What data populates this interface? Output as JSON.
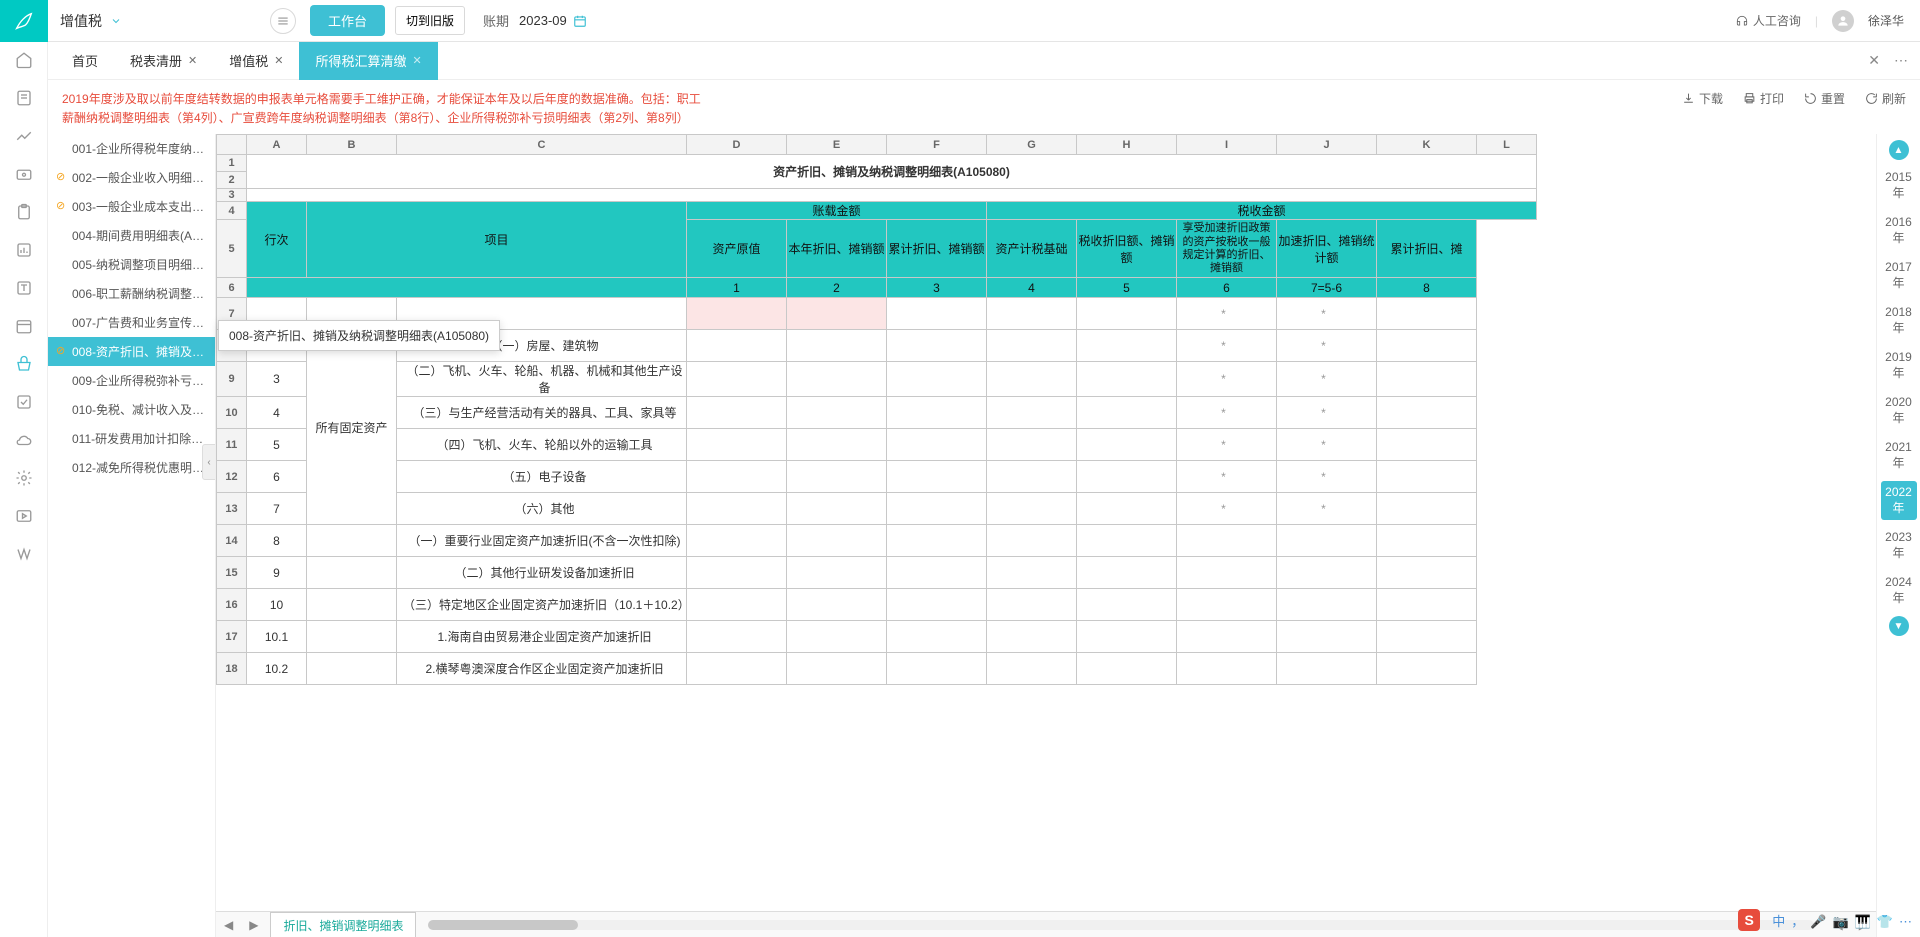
{
  "header": {
    "company": "增值税",
    "workspace_btn": "工作台",
    "old_version_btn": "切到旧版",
    "period_label": "账期",
    "period_value": "2023-09",
    "consult_label": "人工咨询",
    "username": "徐泽华"
  },
  "doc_tabs": [
    {
      "label": "首页",
      "closable": false,
      "active": false
    },
    {
      "label": "税表清册",
      "closable": true,
      "active": false
    },
    {
      "label": "增值税",
      "closable": true,
      "active": false
    },
    {
      "label": "所得税汇算清缴",
      "closable": true,
      "active": true
    }
  ],
  "notice": "2019年度涉及取以前年度结转数据的申报表单元格需要手工维护正确，才能保证本年及以后年度的数据准确。包括：职工薪酬纳税调整明细表（第4列）、广宣费跨年度纳税调整明细表（第8行）、企业所得税弥补亏损明细表（第2列、第8列）",
  "actions": {
    "download": "下载",
    "print": "打印",
    "reset": "重置",
    "refresh": "刷新"
  },
  "form_list": [
    {
      "label": "001-企业所得税年度纳税申...",
      "warn": false,
      "selected": false
    },
    {
      "label": "002-一般企业收入明细表(A1...",
      "warn": true,
      "selected": false
    },
    {
      "label": "003-一般企业成本支出明细...",
      "warn": true,
      "selected": false
    },
    {
      "label": "004-期间费用明细表(A1040...",
      "warn": false,
      "selected": false
    },
    {
      "label": "005-纳税调整项目明细表(A1...",
      "warn": false,
      "selected": false
    },
    {
      "label": "006-职工薪酬纳税调整明细...",
      "warn": false,
      "selected": false
    },
    {
      "label": "007-广告费和业务宣传费跨...",
      "warn": false,
      "selected": false
    },
    {
      "label": "008-资产折旧、摊销及纳税...",
      "warn": true,
      "selected": true
    },
    {
      "label": "009-企业所得税弥补亏损明...",
      "warn": false,
      "selected": false
    },
    {
      "label": "010-免税、减计收入及加计...",
      "warn": false,
      "selected": false
    },
    {
      "label": "011-研发费用加计扣除优惠...",
      "warn": false,
      "selected": false
    },
    {
      "label": "012-减免所得税优惠明细表(...",
      "warn": false,
      "selected": false
    }
  ],
  "tooltip": "008-资产折旧、摊销及纳税调整明细表(A105080)",
  "sheet": {
    "columns": [
      "A",
      "B",
      "C",
      "D",
      "E",
      "F",
      "G",
      "H",
      "I",
      "J",
      "K",
      "L"
    ],
    "title": "资产折旧、摊销及纳税调整明细表(A105080)",
    "hdr_row_label": "行次",
    "hdr_project": "项目",
    "hdr_book_group": "账载金额",
    "hdr_tax_group": "税收金额",
    "sub_headers": {
      "d": "资产原值",
      "e": "本年折旧、摊销额",
      "f": "累计折旧、摊销额",
      "g": "资产计税基础",
      "h": "税收折旧额、摊销额",
      "i": "享受加速折旧政策的资产按税收一般规定计算的折旧、摊销额",
      "j": "加速折旧、摊销统计额",
      "k": "累计折旧、摊"
    },
    "col_nums": {
      "d": "1",
      "e": "2",
      "f": "3",
      "g": "4",
      "h": "5",
      "i": "6",
      "j": "7=5-6",
      "k": "8"
    },
    "rows": [
      {
        "r": "7",
        "a": "",
        "b": "",
        "c": "",
        "pinkDE": true
      },
      {
        "r": "8",
        "a": "2",
        "b": "",
        "c": "（一）房屋、建筑物"
      },
      {
        "r": "9",
        "a": "3",
        "b": "",
        "c": "（二）飞机、火车、轮船、机器、机械和其他生产设备"
      },
      {
        "r": "10",
        "a": "4",
        "b": "",
        "c": "（三）与生产经营活动有关的器具、工具、家具等"
      },
      {
        "r": "11",
        "a": "5",
        "b": "所有固定资产",
        "c": "（四）飞机、火车、轮船以外的运输工具"
      },
      {
        "r": "12",
        "a": "6",
        "b": "",
        "c": "（五）电子设备"
      },
      {
        "r": "13",
        "a": "7",
        "b": "",
        "c": "（六）其他"
      },
      {
        "r": "14",
        "a": "8",
        "b": "",
        "c": "（一）重要行业固定资产加速折旧(不含一次性扣除)"
      },
      {
        "r": "15",
        "a": "9",
        "b": "",
        "c": "（二）其他行业研发设备加速折旧"
      },
      {
        "r": "16",
        "a": "10",
        "b": "",
        "c": "（三）特定地区企业固定资产加速折旧（10.1＋10.2）"
      },
      {
        "r": "17",
        "a": "10.1",
        "b": "",
        "c": "1.海南自由贸易港企业固定资产加速折旧"
      },
      {
        "r": "18",
        "a": "10.2",
        "b": "",
        "c": "2.横琴粤澳深度合作区企业固定资产加速折旧"
      }
    ],
    "bottom_tab": "折旧、摊销调整明细表"
  },
  "years": [
    "2015年",
    "2016年",
    "2017年",
    "2018年",
    "2019年",
    "2020年",
    "2021年",
    "2022年",
    "2023年",
    "2024年"
  ],
  "year_selected": "2022年",
  "ime": {
    "logo": "S",
    "items": [
      "中",
      "，",
      "🎤",
      "📷",
      "🎹",
      "👕",
      "⋯"
    ]
  },
  "colors": {
    "brand": "#3ec0d4",
    "teal": "#22c7c0",
    "pink": "#fce5e5",
    "warn": "#f5a623",
    "notice": "#e74c3c"
  }
}
